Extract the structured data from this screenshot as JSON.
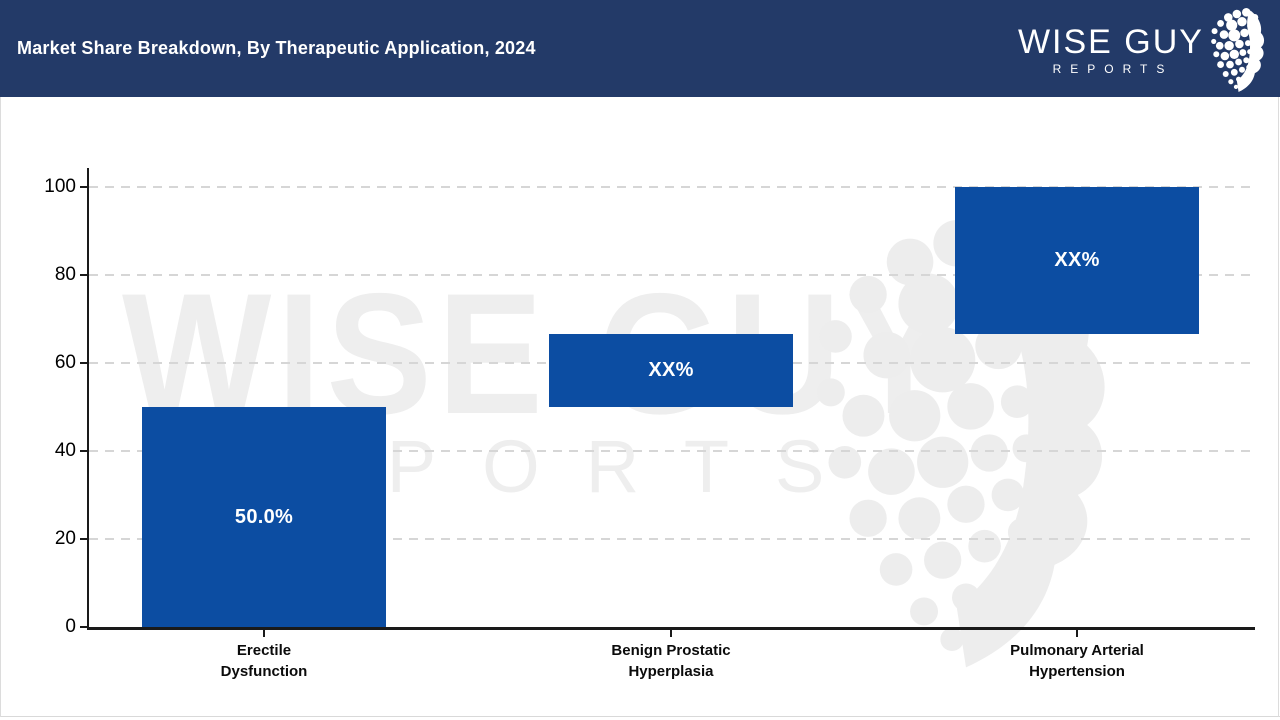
{
  "header": {
    "title": "Market Share Breakdown, By Therapeutic Application, 2024",
    "bg_color": "#233a68",
    "logo": {
      "name": "WISE GUY",
      "subtitle": "REPORTS"
    }
  },
  "watermark": {
    "line1": "WISE GUY",
    "line2": "REPORTS"
  },
  "chart_data": {
    "type": "bar",
    "subtype": "waterfall-floating-bars",
    "title": "Market Share Breakdown, By Therapeutic Application, 2024",
    "categories": [
      "Erectile Dysfunction",
      "Benign Prostatic Hyperplasia",
      "Pulmonary Arterial Hypertension"
    ],
    "category_label_lines": [
      [
        "Erectile",
        "Dysfunction"
      ],
      [
        "Benign Prostatic",
        "Hyperplasia"
      ],
      [
        "Pulmonary Arterial",
        "Hypertension"
      ]
    ],
    "segments": [
      {
        "category": "Erectile Dysfunction",
        "start": 0,
        "end": 50,
        "label": "50.0%"
      },
      {
        "category": "Benign Prostatic Hyperplasia",
        "start": 50,
        "end": 66.7,
        "label": "XX%"
      },
      {
        "category": "Pulmonary Arterial Hypertension",
        "start": 66.7,
        "end": 100,
        "label": "XX%"
      }
    ],
    "yticks": [
      0,
      20,
      40,
      60,
      80,
      100
    ],
    "ylim": [
      0,
      100
    ],
    "xlabel": "",
    "ylabel": "",
    "grid": "dashed horizontal gridlines",
    "legend": "none",
    "bar_color": "#0c4da2",
    "bar_label_color": "#ffffff",
    "axis_color": "#1a1a1a"
  }
}
